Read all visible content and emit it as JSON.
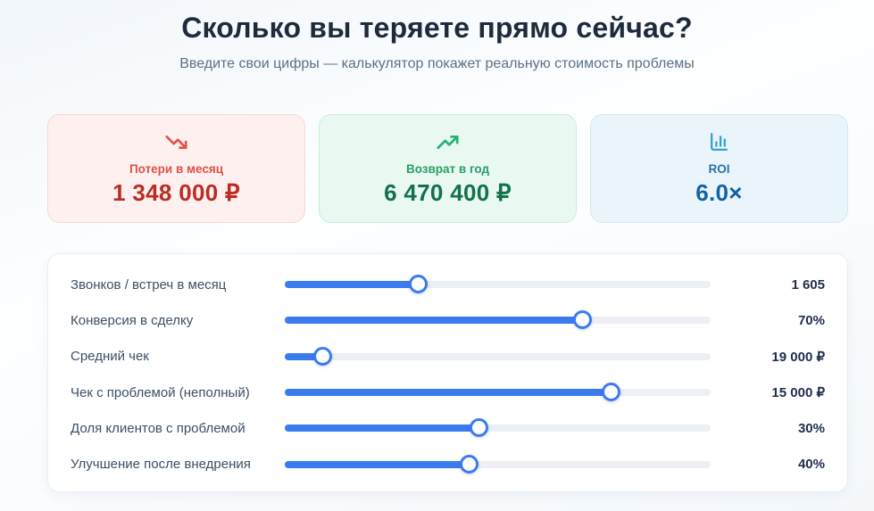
{
  "page": {
    "title": "Сколько вы теряете прямо сейчас?",
    "subtitle": "Введите свои цифры — калькулятор покажет реальную стоимость проблемы"
  },
  "stats": [
    {
      "id": "monthly-losses",
      "icon": "trending-down-icon",
      "label": "Потери в месяц",
      "value": "1 348 000 ₽"
    },
    {
      "id": "yearly-return",
      "icon": "trending-up-icon",
      "label": "Возврат в год",
      "value": "6 470 400 ₽"
    },
    {
      "id": "roi",
      "icon": "bar-chart-icon",
      "label": "ROI",
      "value": "6.0×"
    }
  ],
  "sliders": [
    {
      "label": "Звонков / встреч в месяц",
      "value": "1 605",
      "percent": 31.4
    },
    {
      "label": "Конверсия в сделку",
      "value": "70%",
      "percent": 70
    },
    {
      "label": "Средний чек",
      "value": "19 000 ₽",
      "percent": 8.9
    },
    {
      "label": "Чек с проблемой (неполный)",
      "value": "15 000 ₽",
      "percent": 76.7
    },
    {
      "label": "Доля клиентов с проблемой",
      "value": "30%",
      "percent": 45.6
    },
    {
      "label": "Улучшение после внедрения",
      "value": "40%",
      "percent": 43.2
    }
  ],
  "colors": {
    "title_text": "#1e2b3c",
    "subtitle_text": "#5b7085",
    "loss_bg": "#fdf0ef",
    "loss_border": "#f6d9d5",
    "loss_label": "#de5149",
    "loss_value": "#bb2d23",
    "loss_icon": "#e2544a",
    "gain_bg": "#e9f8f1",
    "gain_border": "#cdecdd",
    "gain_label": "#2a9e68",
    "gain_value": "#11734a",
    "gain_icon": "#22b573",
    "roi_bg": "#eaf5fb",
    "roi_border": "#d3e8f4",
    "roi_label": "#2a72ab",
    "roi_value": "#1263a8",
    "roi_icon": "#2d9fd4",
    "slider_fill": "#3b7bf0",
    "slider_track": "#eceff3",
    "slider_label": "#3d4f66",
    "slider_value": "#1f2d4d"
  }
}
